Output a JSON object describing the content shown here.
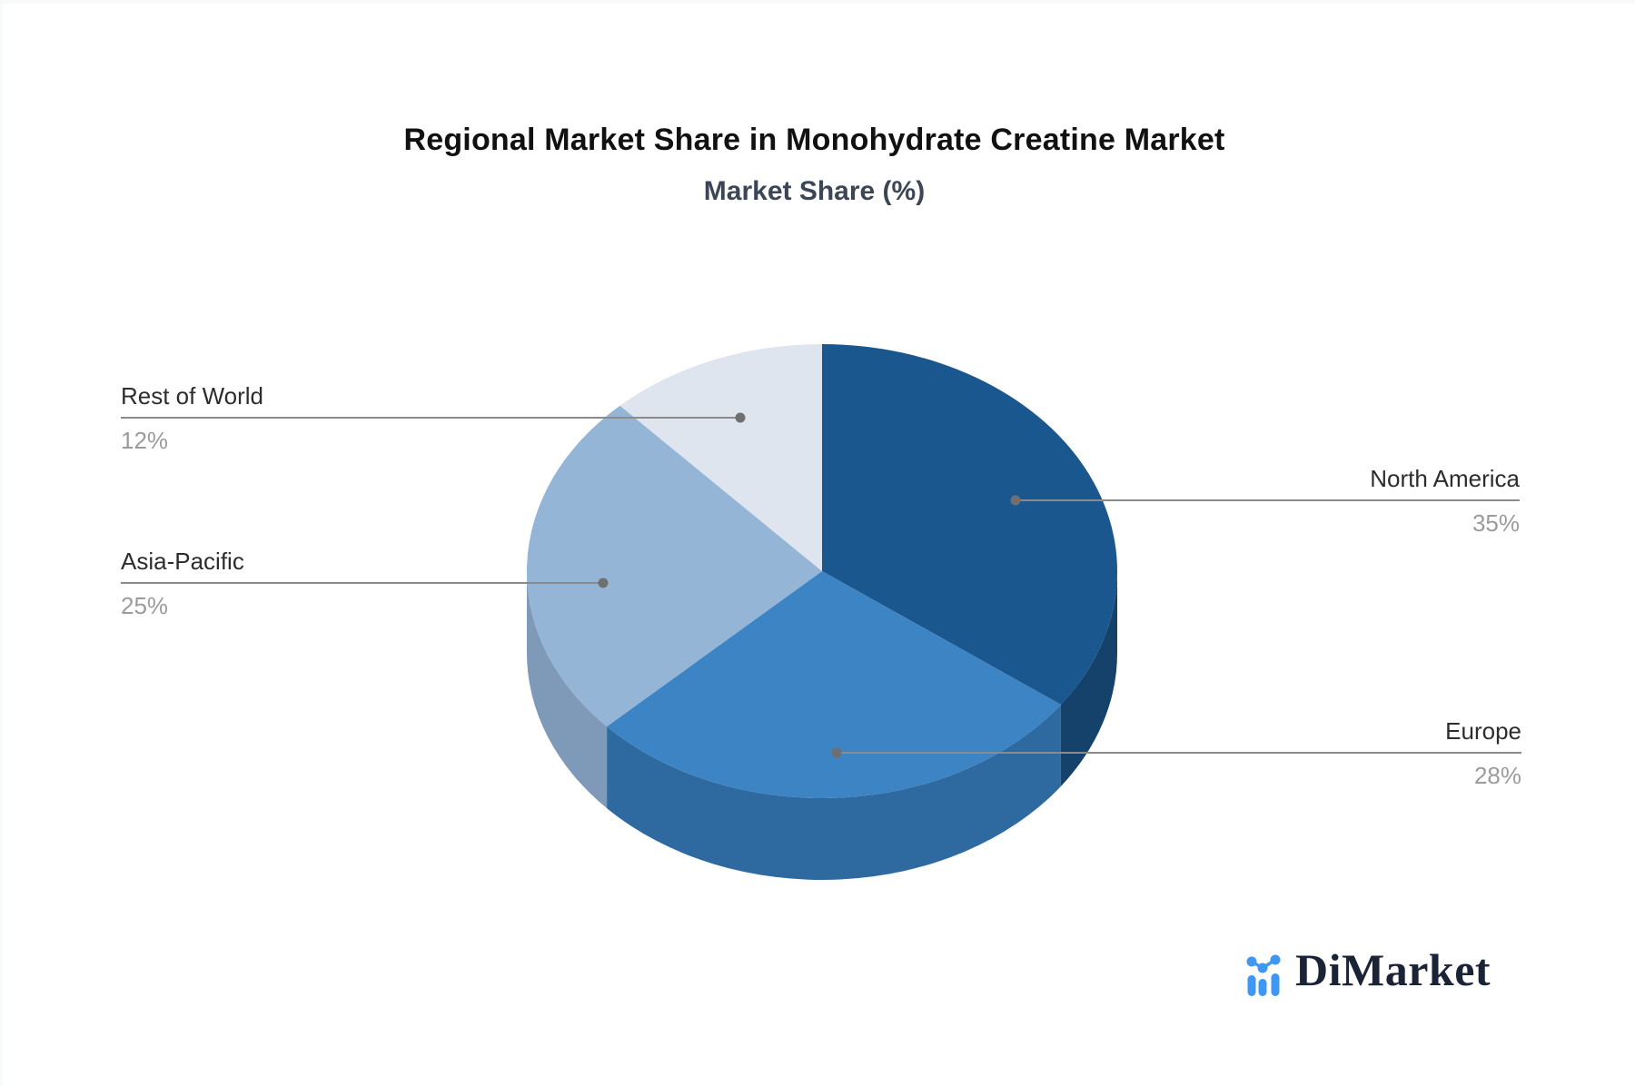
{
  "header": {
    "title": "Regional Market Share in Monohydrate Creatine Market",
    "subtitle": "Market Share (%)"
  },
  "chart_data": {
    "type": "pie",
    "title": "Regional Market Share in Monohydrate Creatine Market",
    "subtitle": "Market Share (%)",
    "unit": "%",
    "direction": "clockwise",
    "start_angle_deg": 0,
    "effect_3d": true,
    "legend_position": "callout-labels",
    "slices": [
      {
        "label": "North America",
        "value": 35,
        "display": "35%",
        "color": "#1b578f",
        "side_color": "#14426b"
      },
      {
        "label": "Europe",
        "value": 28,
        "display": "28%",
        "color": "#3c84c4",
        "side_color": "#2e6a9f"
      },
      {
        "label": "Asia-Pacific",
        "value": 25,
        "display": "25%",
        "color": "#95b5d7",
        "side_color": "#7f99b9"
      },
      {
        "label": "Rest of World",
        "value": 12,
        "display": "12%",
        "color": "#dee5ee",
        "side_color": "#c2cbd9"
      }
    ]
  },
  "logo": {
    "text": "DiMarket",
    "icon": "bar-line-chart-icon"
  },
  "colors": {
    "title": "#111111",
    "subtitle": "#3d4656",
    "callout_label": "#2d2d2d",
    "callout_value": "#9b9b9b",
    "callout_line": "#8b8b8b",
    "callout_dot": "#6f6f6f",
    "logo_text": "#1b2436",
    "logo_icon": "#3e97f2"
  }
}
